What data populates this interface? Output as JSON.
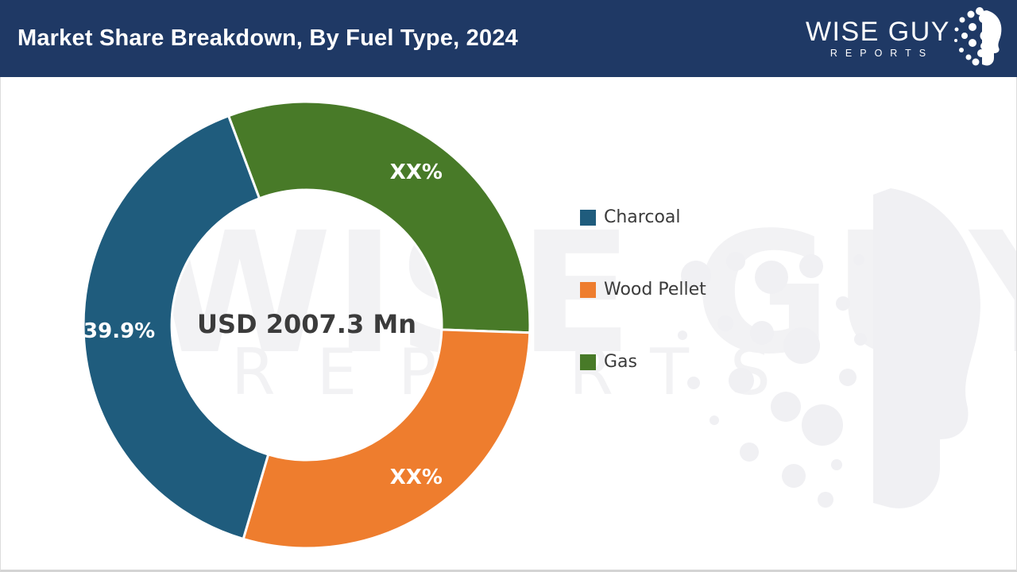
{
  "header": {
    "title": "Market Share Breakdown, By Fuel Type, 2024",
    "bg_color": "#1F3965",
    "text_color": "#FFFFFF",
    "logo": {
      "wordmark": "WISE GUY",
      "subtext": "REPORTS"
    }
  },
  "chart_data": {
    "type": "pie",
    "subtype": "donut",
    "title": "Market Share Breakdown, By Fuel Type, 2024",
    "center_label": "USD 2007.3 Mn",
    "total_value": 2007.3,
    "unit": "USD Mn",
    "legend_position": "right",
    "grid": false,
    "slices": [
      {
        "label": "Gas",
        "display_value": "XX%",
        "percent_estimated": 31.3,
        "color": "#487A28",
        "start_angle": 339.5,
        "end_angle": 92
      },
      {
        "label": "Wood Pellet",
        "display_value": "XX%",
        "percent_estimated": 28.8,
        "color": "#EE7D2E",
        "start_angle": 92,
        "end_angle": 196.5
      },
      {
        "label": "Charcoal",
        "display_value": "39.9%",
        "percent": 39.9,
        "color": "#1F5C7D",
        "start_angle": 196.5,
        "end_angle": 339.5
      }
    ]
  },
  "legend": {
    "items": [
      {
        "label": "Charcoal",
        "color": "#1F5C7D"
      },
      {
        "label": "Wood Pellet",
        "color": "#EE7D2E"
      },
      {
        "label": "Gas",
        "color": "#487A28"
      }
    ]
  },
  "watermark": {
    "wordmark": "WISE GUY",
    "subtext": "REPORTS"
  }
}
